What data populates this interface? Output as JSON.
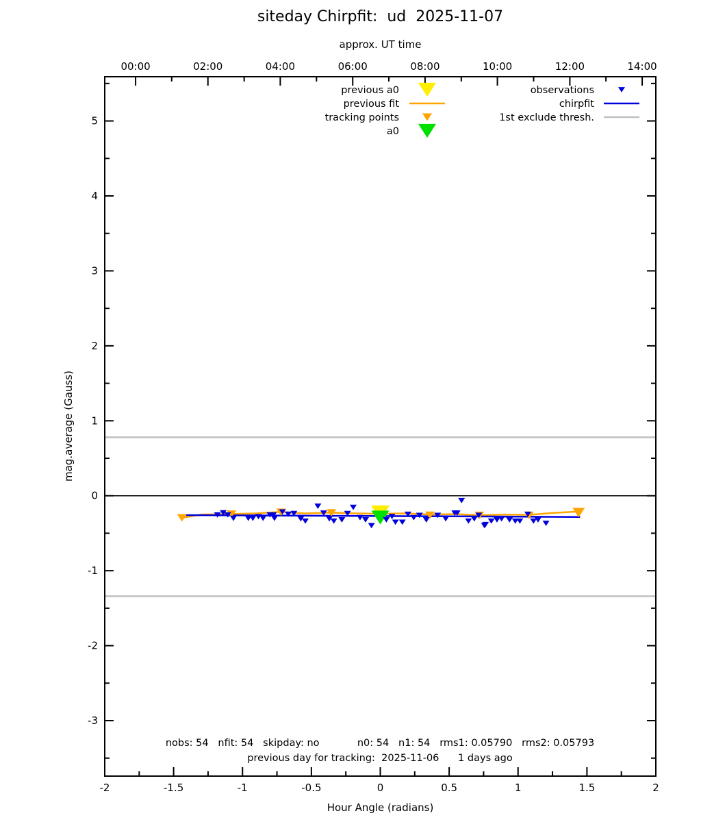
{
  "title": "siteday Chirpfit:  ud  2025-11-07",
  "top_axis": {
    "label": "approx. UT time",
    "ticks": [
      {
        "label": "00:00",
        "x": -1.776
      },
      {
        "label": "02:00",
        "x": -1.251
      },
      {
        "label": "04:00",
        "x": -0.726
      },
      {
        "label": "06:00",
        "x": -0.2
      },
      {
        "label": "08:00",
        "x": 0.325
      },
      {
        "label": "10:00",
        "x": 0.85
      },
      {
        "label": "12:00",
        "x": 1.376
      },
      {
        "label": "14:00",
        "x": 1.901
      }
    ],
    "minor_ticks": [
      -1.514,
      -0.988,
      -0.463,
      0.062,
      0.588,
      1.113,
      1.638
    ]
  },
  "x_axis": {
    "label": "Hour Angle (radians)",
    "range": [
      -2,
      2
    ],
    "ticks": [
      {
        "label": "-2",
        "x": -2
      },
      {
        "label": "-1.5",
        "x": -1.5
      },
      {
        "label": "-1",
        "x": -1
      },
      {
        "label": "-0.5",
        "x": -0.5
      },
      {
        "label": "0",
        "x": 0
      },
      {
        "label": "0.5",
        "x": 0.5
      },
      {
        "label": "1",
        "x": 1
      },
      {
        "label": "1.5",
        "x": 1.5
      },
      {
        "label": "2",
        "x": 2
      }
    ],
    "minor_ticks": [
      -1.75,
      -1.25,
      -0.75,
      -0.25,
      0.25,
      0.75,
      1.25,
      1.75
    ]
  },
  "y_axis": {
    "label": "mag.average (Gauss)",
    "range": [
      -3.74,
      5.59
    ],
    "ticks": [
      {
        "label": "5",
        "y": 5
      },
      {
        "label": "4",
        "y": 4
      },
      {
        "label": "3",
        "y": 3
      },
      {
        "label": "2",
        "y": 2
      },
      {
        "label": "1",
        "y": 1
      },
      {
        "label": "0",
        "y": 0
      },
      {
        "label": "-1",
        "y": -1
      },
      {
        "label": "-2",
        "y": -2
      },
      {
        "label": "-3",
        "y": -3
      }
    ],
    "minor_ticks": [
      5.5,
      4.5,
      3.5,
      2.5,
      1.5,
      0.5,
      -0.5,
      -1.5,
      -2.5,
      -3.5
    ]
  },
  "colors": {
    "observations": "#0000dd",
    "chirpfit": "#0000dd",
    "previous_fit": "#ffa500",
    "tracking_points": "#ffa500",
    "previous_a0": "#ffee00",
    "a0": "#00e000",
    "exclude_threshold": "#c0c0c0",
    "zero_line": "#000000"
  },
  "legend": {
    "left_column": [
      {
        "label": "previous a0",
        "marker": "triangle",
        "color": "#ffee00",
        "size": 26
      },
      {
        "label": "previous fit",
        "marker": "line",
        "color": "#ffa500"
      },
      {
        "label": "tracking points",
        "marker": "triangle",
        "color": "#ffa500",
        "size": 14
      },
      {
        "label": "a0",
        "marker": "triangle",
        "color": "#00e000",
        "size": 26
      }
    ],
    "right_column": [
      {
        "label": "observations",
        "marker": "triangle",
        "color": "#0000dd",
        "size": 10
      },
      {
        "label": "chirpfit",
        "marker": "line",
        "color": "#0000dd"
      },
      {
        "label": "1st exclude thresh.",
        "marker": "line",
        "color": "#c0c0c0"
      }
    ]
  },
  "stats": {
    "line1": "nobs: 54   nfit: 54   skipday: no            n0: 54   n1: 54   rms1: 0.05790   rms2: 0.05793",
    "line2": "previous day for tracking:  2025-11-06      1 days ago"
  },
  "chart_data": {
    "type": "scatter",
    "title": "siteday Chirpfit:  ud  2025-11-07",
    "xlabel": "Hour Angle (radians)",
    "ylabel": "mag.average (Gauss)",
    "x2label": "approx. UT time",
    "xlim": [
      -2,
      2
    ],
    "ylim": [
      -3.74,
      5.59
    ],
    "grid": false,
    "legend_position": "top-inside",
    "zero_line_y": 0,
    "series": [
      {
        "name": "1st exclude thresh.",
        "type": "hline",
        "color": "#c0c0c0",
        "y_values": [
          0.78,
          -1.34
        ]
      },
      {
        "name": "previous fit",
        "type": "line",
        "color": "#ffa500",
        "points": [
          [
            -1.44,
            -0.295
          ],
          [
            -1.3,
            -0.25
          ],
          [
            -1.1,
            -0.245
          ],
          [
            -0.9,
            -0.235
          ],
          [
            -0.72,
            -0.215
          ],
          [
            -0.55,
            -0.235
          ],
          [
            -0.36,
            -0.225
          ],
          [
            -0.18,
            -0.235
          ],
          [
            0.0,
            -0.24
          ],
          [
            0.18,
            -0.235
          ],
          [
            0.36,
            -0.25
          ],
          [
            0.55,
            -0.245
          ],
          [
            0.72,
            -0.26
          ],
          [
            0.9,
            -0.25
          ],
          [
            1.08,
            -0.255
          ],
          [
            1.25,
            -0.23
          ],
          [
            1.44,
            -0.21
          ]
        ]
      },
      {
        "name": "chirpfit",
        "type": "line",
        "color": "#0000dd",
        "points": [
          [
            -1.41,
            -0.258
          ],
          [
            1.45,
            -0.283
          ]
        ]
      },
      {
        "name": "previous a0",
        "type": "scatter",
        "marker": "triangle-down",
        "color": "#ffee00",
        "size": 27,
        "points": [
          [
            0.0,
            -0.225
          ]
        ]
      },
      {
        "name": "a0",
        "type": "scatter",
        "marker": "triangle-down",
        "color": "#00e000",
        "size": 26,
        "points": [
          [
            0.0,
            -0.29
          ]
        ]
      },
      {
        "name": "tracking points",
        "type": "scatter",
        "marker": "triangle-down",
        "color": "#ffa500",
        "size": 14,
        "points": [
          [
            -1.44,
            -0.295
          ],
          [
            -1.08,
            -0.245
          ],
          [
            -0.72,
            -0.22
          ],
          [
            -0.355,
            -0.228
          ],
          [
            0.36,
            -0.26
          ],
          [
            0.72,
            -0.262
          ],
          [
            1.08,
            -0.262
          ],
          [
            1.44,
            -0.225,
            18
          ]
        ]
      },
      {
        "name": "observations",
        "type": "scatter",
        "marker": "triangle-down",
        "color": "#0000dd",
        "size": 10,
        "points": [
          [
            -1.182,
            -0.256
          ],
          [
            -1.14,
            -0.228
          ],
          [
            -1.107,
            -0.256
          ],
          [
            -1.066,
            -0.301
          ],
          [
            -0.958,
            -0.301
          ],
          [
            -0.925,
            -0.301
          ],
          [
            -0.884,
            -0.28
          ],
          [
            -0.851,
            -0.301
          ],
          [
            -0.801,
            -0.256
          ],
          [
            -0.776,
            -0.256
          ],
          [
            -0.768,
            -0.301
          ],
          [
            -0.71,
            -0.216
          ],
          [
            -0.668,
            -0.247
          ],
          [
            -0.627,
            -0.237
          ],
          [
            -0.577,
            -0.308
          ],
          [
            -0.544,
            -0.338
          ],
          [
            -0.453,
            -0.14
          ],
          [
            -0.411,
            -0.231
          ],
          [
            -0.37,
            -0.308
          ],
          [
            -0.337,
            -0.338
          ],
          [
            -0.279,
            -0.322
          ],
          [
            -0.238,
            -0.237
          ],
          [
            -0.196,
            -0.155
          ],
          [
            -0.147,
            -0.292
          ],
          [
            -0.107,
            -0.322
          ],
          [
            -0.064,
            -0.399
          ],
          [
            0.044,
            -0.322
          ],
          [
            0.085,
            -0.277
          ],
          [
            0.11,
            -0.353
          ],
          [
            0.16,
            -0.353
          ],
          [
            0.201,
            -0.247
          ],
          [
            0.243,
            -0.292
          ],
          [
            0.284,
            -0.262
          ],
          [
            0.334,
            -0.322
          ],
          [
            0.416,
            -0.262
          ],
          [
            0.475,
            -0.308
          ],
          [
            0.541,
            -0.231
          ],
          [
            0.558,
            -0.231
          ],
          [
            0.59,
            -0.064
          ],
          [
            0.64,
            -0.338
          ],
          [
            0.682,
            -0.308
          ],
          [
            0.715,
            -0.262
          ],
          [
            0.756,
            -0.399
          ],
          [
            0.764,
            -0.384
          ],
          [
            0.806,
            -0.338
          ],
          [
            0.847,
            -0.322
          ],
          [
            0.88,
            -0.308
          ],
          [
            0.938,
            -0.322
          ],
          [
            0.98,
            -0.338
          ],
          [
            1.013,
            -0.338
          ],
          [
            1.071,
            -0.247
          ],
          [
            1.112,
            -0.338
          ],
          [
            1.145,
            -0.322
          ],
          [
            1.203,
            -0.368
          ]
        ]
      }
    ]
  }
}
